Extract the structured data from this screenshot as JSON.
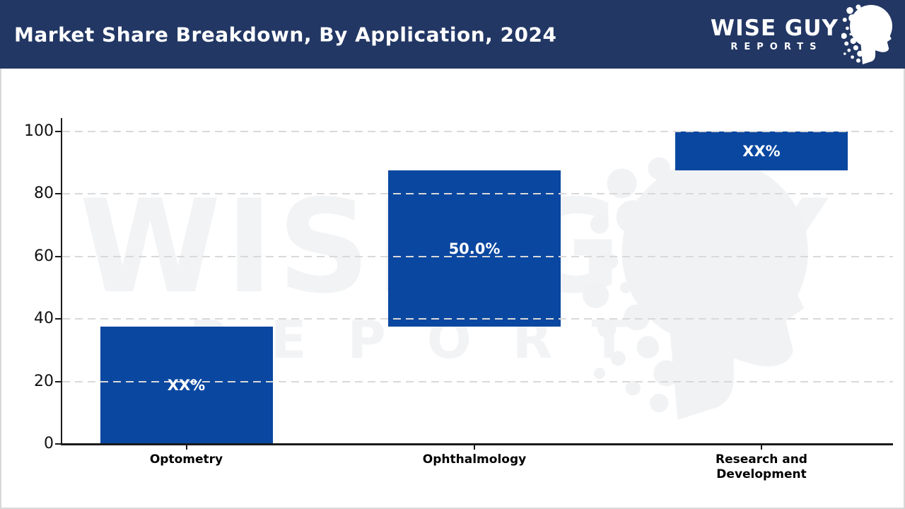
{
  "header": {
    "title": "Market Share Breakdown, By Application, 2024",
    "logo": {
      "name": "WISE GUY",
      "sub": "REPORTS"
    }
  },
  "watermark": {
    "line1": "WISE GUY",
    "line2": "REPORTS"
  },
  "chart_data": {
    "type": "bar",
    "variant": "waterfall",
    "title": "Market Share Breakdown, By Application, 2024",
    "categories": [
      "Optometry",
      "Ophthalmology",
      "Research and Development"
    ],
    "segments": [
      {
        "category": "Optometry",
        "start": 0,
        "end": 37.5,
        "label": "XX%"
      },
      {
        "category": "Ophthalmology",
        "start": 37.5,
        "end": 87.5,
        "label": "50.0%"
      },
      {
        "category": "Research and Development",
        "start": 87.5,
        "end": 100,
        "label": "XX%"
      }
    ],
    "ytick_labels": [
      "0",
      "20",
      "40",
      "60",
      "80",
      "100"
    ],
    "yticks": [
      0,
      20,
      40,
      60,
      80,
      100
    ],
    "ylim": [
      0,
      104
    ],
    "xlabel": "",
    "ylabel": "",
    "grid": "horizontal-dashed",
    "legend": "none",
    "bar_color": "#0a47a0",
    "grid_color": "#d9d9d9",
    "axis_color": "#1a1a1a",
    "header_bg_color": "#223764",
    "label_text_color": "#ffffff"
  }
}
